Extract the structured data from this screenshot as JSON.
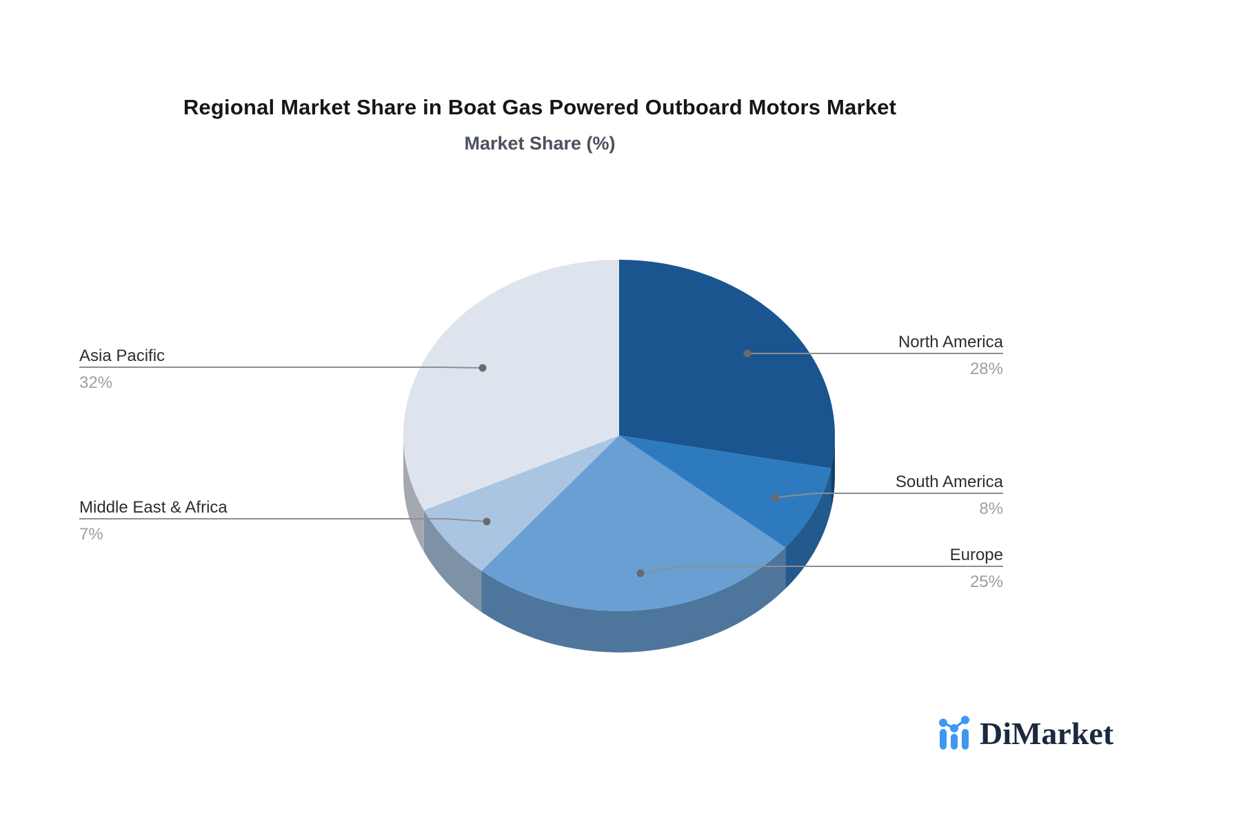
{
  "title": "Regional Market Share in Boat Gas Powered Outboard Motors Market",
  "subtitle": "Market Share (%)",
  "chart_data": {
    "type": "pie",
    "title": "Regional Market Share in Boat Gas Powered Outboard Motors Market",
    "subtitle": "Market Share (%)",
    "unit": "%",
    "style": "3d-pie",
    "start_angle_deg": -90,
    "direction": "clockwise",
    "slices": [
      {
        "label": "North America",
        "value": 28,
        "display": "28%",
        "color": "#1a5590"
      },
      {
        "label": "South America",
        "value": 8,
        "display": "8%",
        "color": "#2e7abf"
      },
      {
        "label": "Europe",
        "value": 25,
        "display": "25%",
        "color": "#6a9fd3"
      },
      {
        "label": "Middle East & Africa",
        "value": 7,
        "display": "7%",
        "color": "#a9c5e1"
      },
      {
        "label": "Asia Pacific",
        "value": 32,
        "display": "32%",
        "color": "#dee4ee"
      }
    ],
    "legend": "none",
    "label_line_color": "#8f8f8f",
    "label_dot_color": "#6a6a6a",
    "label_text_color": "#2b2e31",
    "pct_text_color": "#999fa6"
  },
  "logo": {
    "text": "DiMarket",
    "icon": "bar-chart-trend-icon",
    "icon_color": "#3e97f3",
    "text_color": "#1b2940"
  }
}
